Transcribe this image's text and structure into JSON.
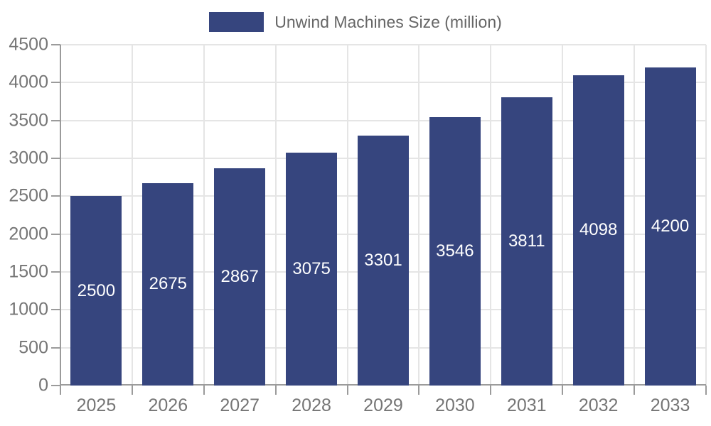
{
  "legend": {
    "label": "Unwind Machines Size (million)"
  },
  "colors": {
    "bar": "#36457E",
    "bar_label": "#FFFFFF",
    "axis_line": "#9B9B9B",
    "grid_line": "#E5E5E5",
    "axis_text": "#757575",
    "legend_text": "#666666",
    "background": "#FFFFFF"
  },
  "chart_data": {
    "type": "bar",
    "title": "Unwind Machines Size (million)",
    "categories": [
      "2025",
      "2026",
      "2027",
      "2028",
      "2029",
      "2030",
      "2031",
      "2032",
      "2033"
    ],
    "values": [
      2500,
      2675,
      2867,
      3075,
      3301,
      3546,
      3811,
      4098,
      4200
    ],
    "xlabel": "",
    "ylabel": "",
    "ylim": [
      0,
      4500
    ],
    "ytick_step": 500,
    "yticks": [
      0,
      500,
      1000,
      1500,
      2000,
      2500,
      3000,
      3500,
      4000,
      4500
    ],
    "grid": true,
    "legend_position": "top",
    "bar_value_labels": "inside-center"
  }
}
